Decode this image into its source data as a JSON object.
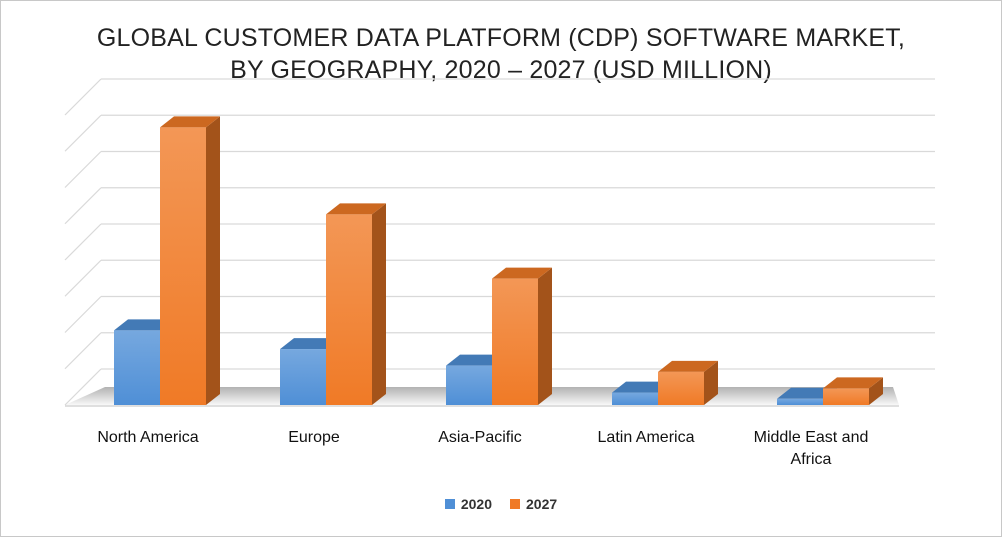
{
  "chart_data": {
    "type": "bar",
    "title_lines": [
      "GLOBAL CUSTOMER DATA PLATFORM (CDP) SOFTWARE MARKET,",
      "BY GEOGRAPHY, 2020 – 2027 (USD MILLION)"
    ],
    "categories": [
      "North America",
      "Europe",
      "Asia-Pacific",
      "Latin America",
      "Middle East and Africa"
    ],
    "series": [
      {
        "name": "2020",
        "values": [
          1.8,
          1.35,
          0.95,
          0.3,
          0.15
        ],
        "color": "#4F8FD6"
      },
      {
        "name": "2027",
        "values": [
          6.7,
          4.6,
          3.05,
          0.8,
          0.4
        ],
        "color": "#F07A26"
      }
    ],
    "ylim": [
      0,
      7
    ],
    "grid": true,
    "legend_position": "bottom",
    "three_d": true
  }
}
